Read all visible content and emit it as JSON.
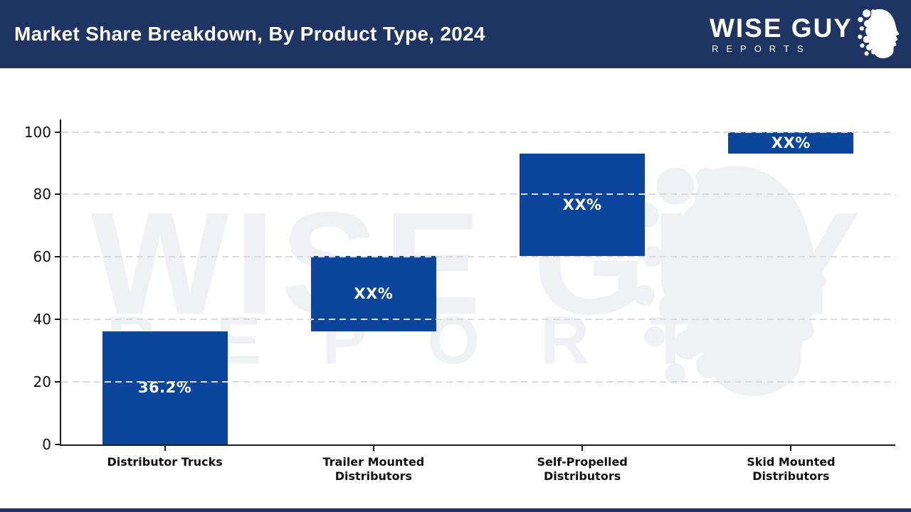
{
  "header": {
    "title": "Market Share Breakdown, By Product Type, 2024",
    "brand_line1": "WISE GUY",
    "brand_line2": "REPORTS",
    "bg_color": "#1e3462"
  },
  "watermark": {
    "line1": "WISE GUY",
    "line2": "REPORTS",
    "color": "#f0f1f5"
  },
  "chart_data": {
    "type": "bar",
    "subtype": "waterfall",
    "title": "Market Share Breakdown, By Product Type, 2024",
    "categories": [
      [
        "Distributor Trucks"
      ],
      [
        "Trailer Mounted",
        "Distributors"
      ],
      [
        "Self-Propelled",
        "Distributors"
      ],
      [
        "Skid Mounted",
        "Distributors"
      ]
    ],
    "bars": [
      {
        "category": "Distributor Trucks",
        "start": 0,
        "end": 36.2,
        "label": "36.2%"
      },
      {
        "category": "Trailer Mounted Distributors",
        "start": 36.2,
        "end": 60.3,
        "label": "XX%"
      },
      {
        "category": "Self-Propelled Distributors",
        "start": 60.3,
        "end": 93.0,
        "label": "XX%"
      },
      {
        "category": "Skid Mounted Distributors",
        "start": 93.0,
        "end": 100.0,
        "label": "XX%"
      }
    ],
    "y_ticks": [
      0,
      20,
      40,
      60,
      80,
      100
    ],
    "ylim": [
      0,
      104
    ],
    "grid": "dashed horizontal",
    "legend": "none",
    "bar_color": "#0b469c",
    "bar_label_color": "#ffffff",
    "axis_color": "#1a1a1a",
    "grid_color": "#d9d9d9"
  }
}
